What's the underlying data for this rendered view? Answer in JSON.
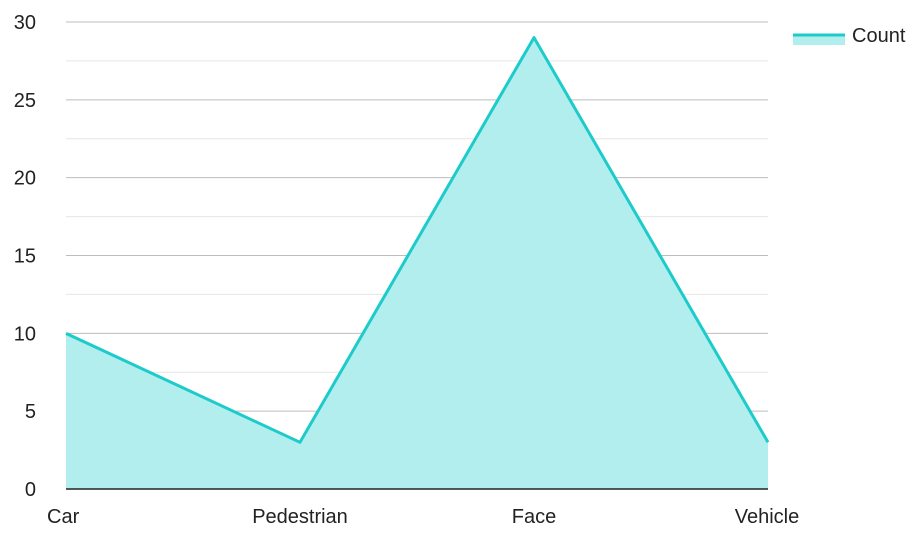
{
  "chart_data": {
    "type": "area",
    "categories": [
      "Car",
      "Pedestrian",
      "Face",
      "Vehicle"
    ],
    "series": [
      {
        "name": "Count",
        "values": [
          10,
          3,
          29,
          3
        ]
      }
    ],
    "yticks": [
      0,
      5,
      10,
      15,
      20,
      25,
      30
    ],
    "ylim": [
      0,
      30
    ],
    "xlabel": "",
    "ylabel": "",
    "grid": true,
    "legend": {
      "position": "top-right",
      "entries": [
        "Count"
      ]
    },
    "colors": {
      "line": "#1dcbcb",
      "fill": "#b2eeee",
      "grid_major": "#bdbdbd",
      "grid_minor": "#e6e6e6",
      "axis": "#222222"
    }
  }
}
